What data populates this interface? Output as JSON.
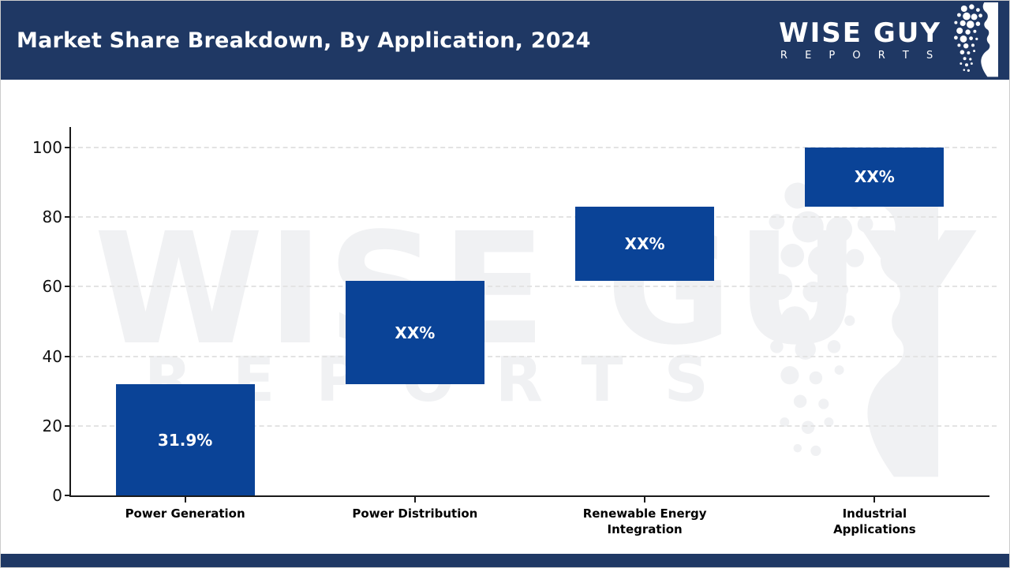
{
  "header": {
    "title": "Market Share Breakdown, By Application, 2024"
  },
  "logo": {
    "name_line": "WISE GUY",
    "reports_line": "R E P O R T S"
  },
  "watermark": {
    "line1": "WISE GUY",
    "line2": "REPORTS"
  },
  "colors": {
    "header_navy": "#1f3864",
    "footer_navy": "#1f3864",
    "bar_blue": "#0a4397",
    "grid_gray": "#e3e3e3",
    "watermark_gray": "#f0f1f3",
    "axis_black": "#1a1a1a"
  },
  "chart_data": {
    "type": "bar",
    "style": "waterfall-stacked-segments",
    "title": "Market Share Breakdown, By Application, 2024",
    "categories": [
      "Power Generation",
      "Power Distribution",
      "Renewable Energy Integration",
      "Industrial Applications"
    ],
    "segments": [
      {
        "category": "Power Generation",
        "start": 0,
        "end": 31.9,
        "label": "31.9%"
      },
      {
        "category": "Power Distribution",
        "start": 31.9,
        "end": 61.7,
        "label": "XX%"
      },
      {
        "category": "Renewable Energy Integration",
        "start": 61.7,
        "end": 83.0,
        "label": "XX%"
      },
      {
        "category": "Industrial Applications",
        "start": 83.0,
        "end": 100.0,
        "label": "XX%"
      }
    ],
    "ylim": [
      0,
      100
    ],
    "yticks": [
      0,
      20,
      40,
      60,
      80,
      100
    ],
    "xlabel": "",
    "ylabel": "",
    "grid": "horizontal-dashed",
    "legend": "none",
    "bar_color": "#0a4397",
    "bar_label_color": "#ffffff"
  }
}
